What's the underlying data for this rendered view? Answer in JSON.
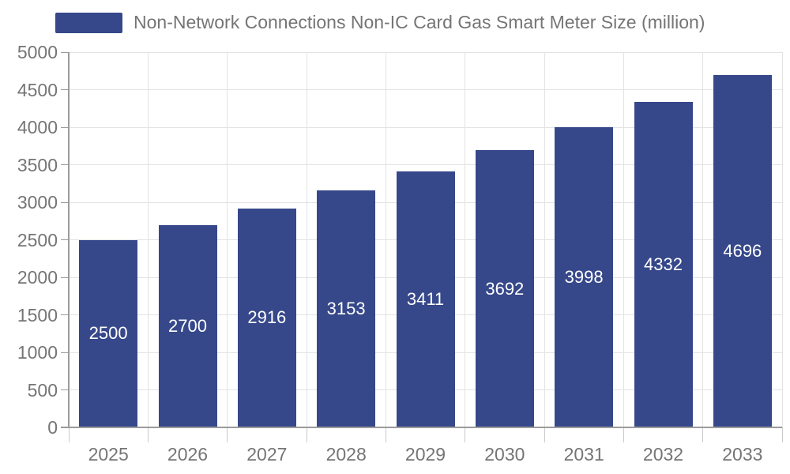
{
  "chart_data": {
    "type": "bar",
    "title": "",
    "legend": [
      "Non-Network Connections Non-IC Card Gas Smart Meter Size (million)"
    ],
    "categories": [
      "2025",
      "2026",
      "2027",
      "2028",
      "2029",
      "2030",
      "2031",
      "2032",
      "2033"
    ],
    "series": [
      {
        "name": "Non-Network Connections Non-IC Card Gas Smart Meter Size (million)",
        "values": [
          2500,
          2700,
          2916,
          3153,
          3411,
          3692,
          3998,
          4332,
          4696
        ]
      }
    ],
    "value_labels": [
      2500,
      2700,
      2916,
      3153,
      3411,
      3692,
      3998,
      4332,
      4696
    ],
    "xlabel": "",
    "ylabel": "",
    "ylim": [
      0,
      5000
    ],
    "ytick_step": 500,
    "ytick_labels": [
      "0",
      "500",
      "1000",
      "1500",
      "2000",
      "2500",
      "3000",
      "3500",
      "4000",
      "4500",
      "5000"
    ],
    "grid": true,
    "legend_position": "top-left"
  },
  "colors": {
    "bar": "#36488A",
    "bar_value_label": "#ffffff",
    "axis_text": "#757575",
    "legend_text": "#757575",
    "gridline": "#e3e3e3",
    "axis_line": "#9b9b9b",
    "tick_line": "#c9c9c9",
    "background": "#ffffff"
  }
}
